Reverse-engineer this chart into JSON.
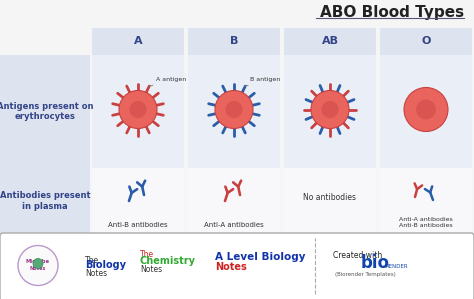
{
  "title": "ABO Blood Types",
  "title_fontsize": 11,
  "background_color": "#f5f5f5",
  "header_bg": "#dde4ef",
  "row_label_bg": "#dde4ef",
  "cell_bg_antigen": "#eaeff7",
  "cell_bg_antibody": "#f8f8fb",
  "blood_types": [
    "A",
    "B",
    "AB",
    "O"
  ],
  "row_labels": [
    "Antigens present on\nerythrocytes",
    "Antibodies present\nin plasma"
  ],
  "antigen_labels_A": "A antigen",
  "antigen_labels_B": "B antigen",
  "antibody_labels": [
    "Anti-B antibodies",
    "Anti-A antibodies",
    "No antibodies",
    "Anti-A antibodies\nAnti-B antibodies"
  ],
  "rbc_color": "#e8645c",
  "rbc_inner_color": "#d04848",
  "rbc_edge": "#c94040",
  "spike_color_A": "#c94040",
  "spike_color_B": "#2a5da8",
  "antibody_color_blue": "#2a5da8",
  "antibody_color_red": "#c94040",
  "grid_line_color": "#c5cfe0",
  "title_color": "#222222",
  "header_text_color": "#334488",
  "row_label_text_color": "#334488",
  "footer_border": "#aaaaaa",
  "footer_bg": "#ffffff"
}
